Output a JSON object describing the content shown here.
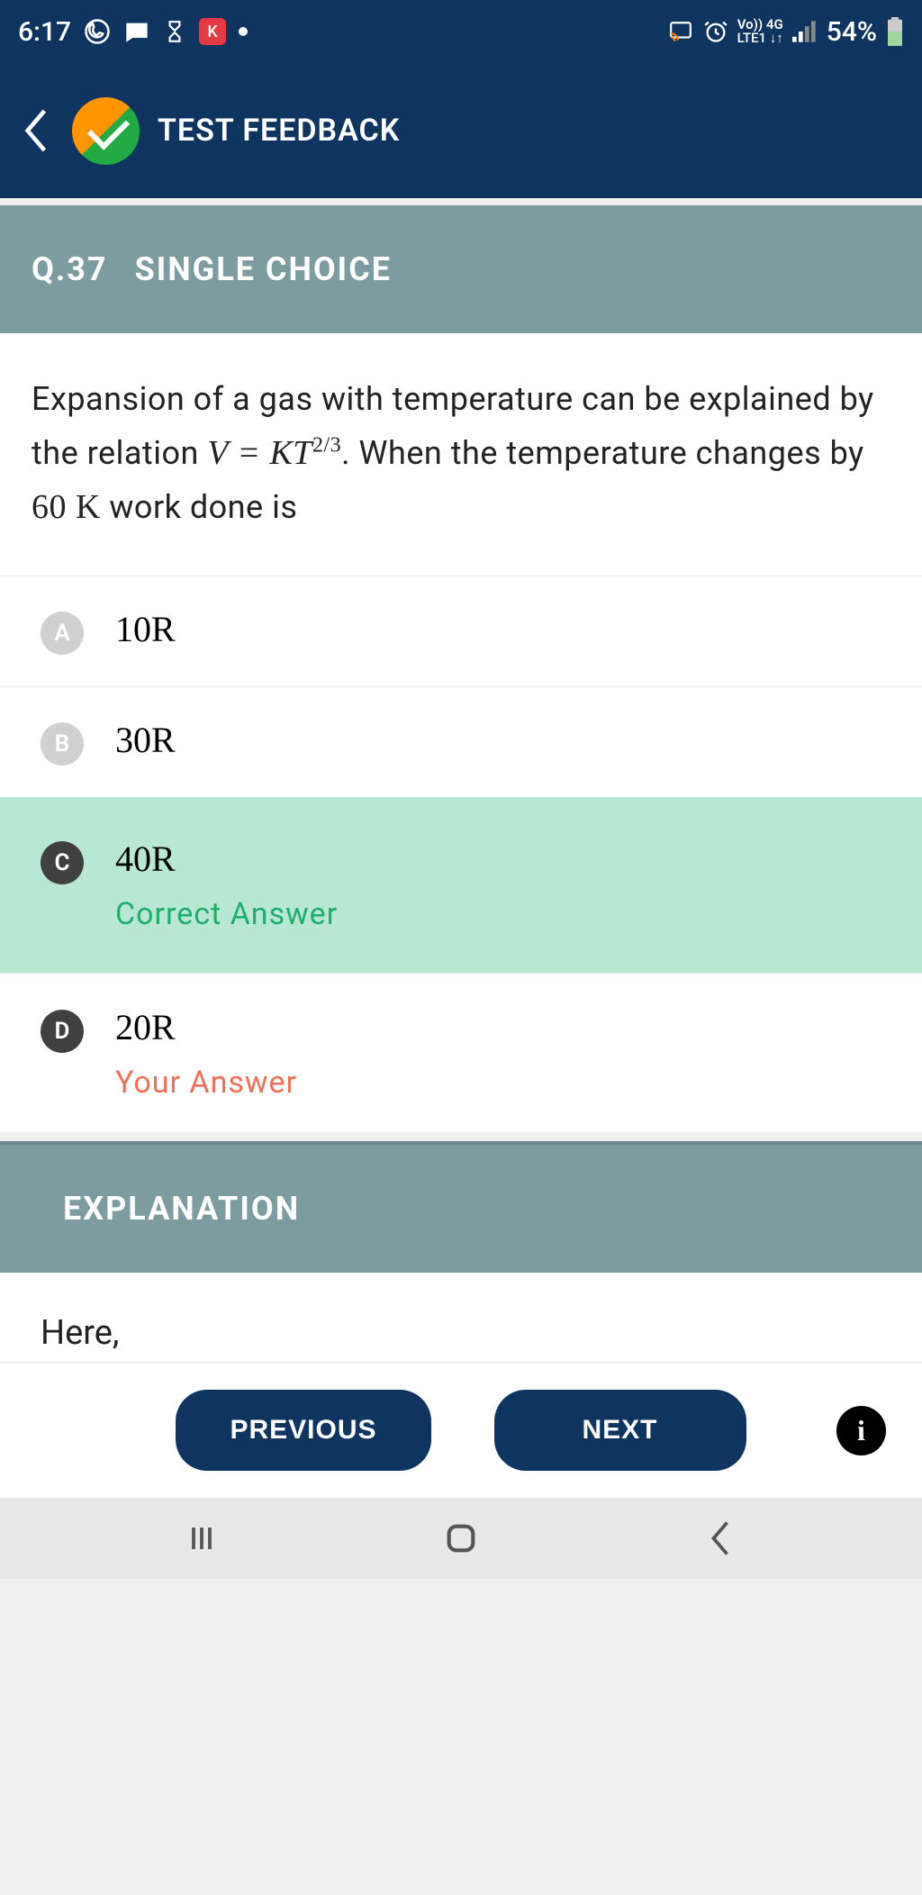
{
  "status_bar": {
    "time": "6:17",
    "battery": "54%",
    "lte_top": "Vo)) 4G",
    "lte_bottom": "LTE1 ↓↑"
  },
  "header": {
    "title": "TEST FEEDBACK"
  },
  "question": {
    "number": "Q.37",
    "type": "SINGLE CHOICE",
    "text_part1": "Expansion of a gas with temperature can be explained by the relation ",
    "formula_html": "V = KT",
    "formula_exp": "2/3",
    "text_part2": ". When the temperature changes by ",
    "temp_value": "60 K",
    "text_part3": "  work done is"
  },
  "options": [
    {
      "letter": "A",
      "text": "10R",
      "dark": false,
      "correct": false,
      "your": false
    },
    {
      "letter": "B",
      "text": "30R",
      "dark": false,
      "correct": false,
      "your": false
    },
    {
      "letter": "C",
      "text": "40R",
      "dark": true,
      "correct": true,
      "your": false
    },
    {
      "letter": "D",
      "text": "20R",
      "dark": true,
      "correct": false,
      "your": true
    }
  ],
  "labels": {
    "correct": "Correct Answer",
    "your": "Your Answer",
    "explanation_header": "EXPLANATION",
    "explanation_body": "Here,",
    "previous": "PREVIOUS",
    "next": "NEXT"
  },
  "colors": {
    "primary": "#0f3460",
    "header_grey": "#7d9ca0",
    "correct_bg": "#b8e8d4",
    "correct_text": "#1fae6e",
    "your_text": "#f27059"
  }
}
